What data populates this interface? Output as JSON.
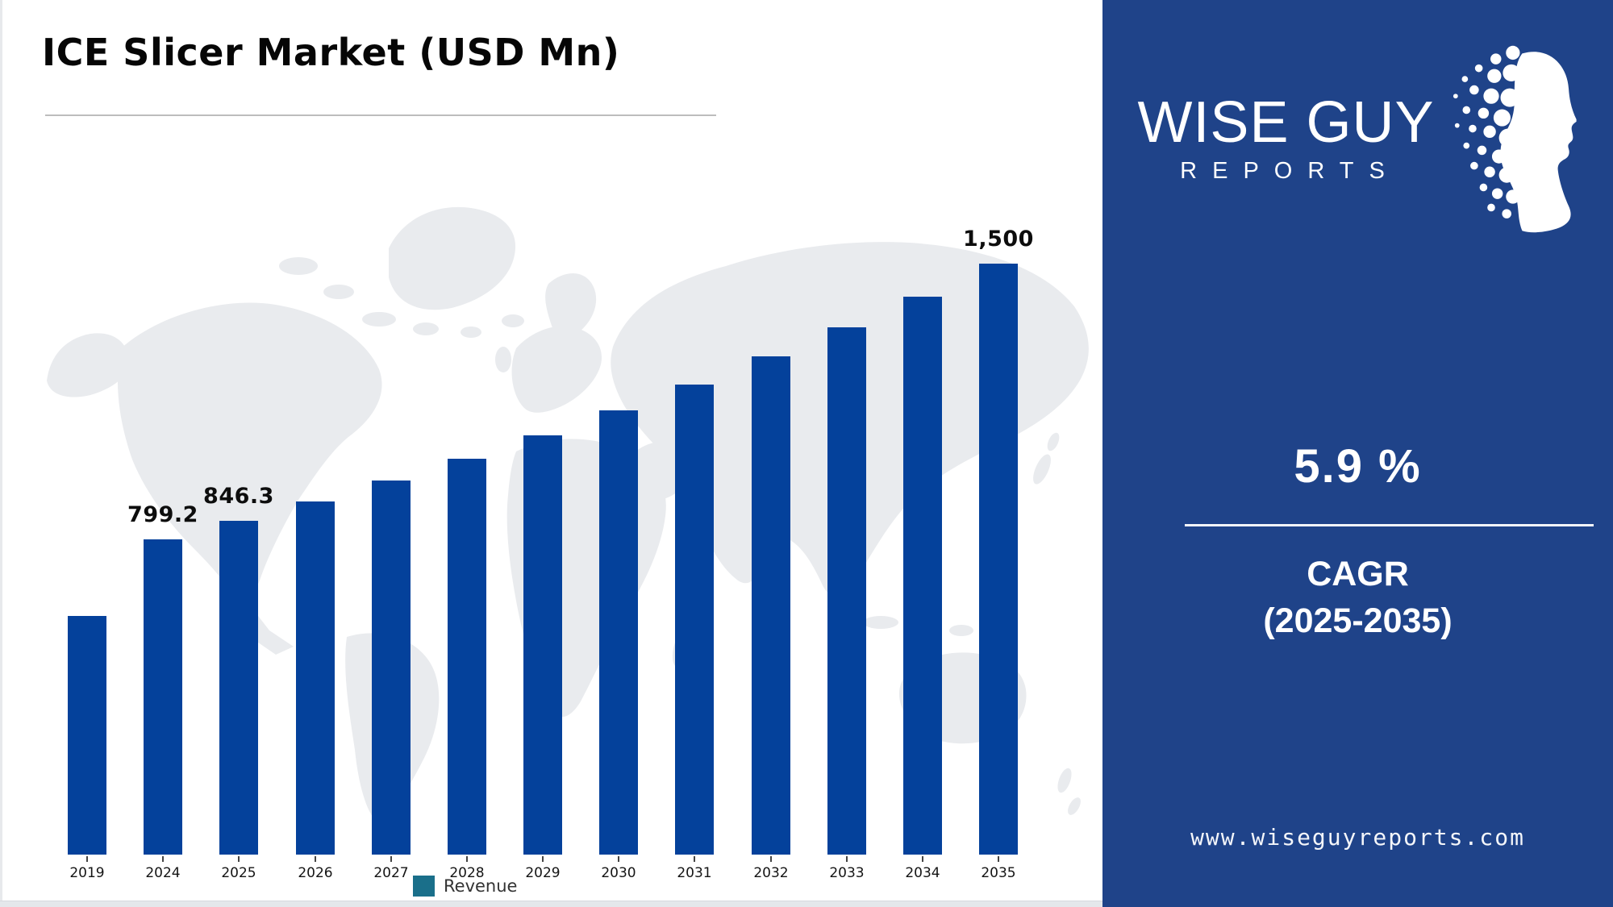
{
  "title": "ICE Slicer Market (USD Mn)",
  "legend": {
    "label": "Revenue"
  },
  "sidebar": {
    "logo_line1": "WISE GUY",
    "logo_line2": "REPORTS",
    "cagr_value": "5.9 %",
    "cagr_line1": "CAGR",
    "cagr_line2": "(2025-2035)",
    "website": "www.wiseguyreports.com"
  },
  "colors": {
    "bar": "#04419b",
    "sidebar_bg": "#1f4389",
    "legend_swatch": "#1a6f8a",
    "map": "#e9ebee"
  },
  "chart_data": {
    "type": "bar",
    "title": "ICE Slicer Market (USD Mn)",
    "series_name": "Revenue",
    "categories": [
      "2019",
      "2024",
      "2025",
      "2026",
      "2027",
      "2028",
      "2029",
      "2030",
      "2031",
      "2032",
      "2033",
      "2034",
      "2035"
    ],
    "values": [
      605,
      799.2,
      846.3,
      896,
      949,
      1005,
      1064,
      1127,
      1194,
      1264,
      1338,
      1417,
      1500
    ],
    "labeled_points": {
      "2024": "799.2",
      "2025": "846.3",
      "2035": "1,500"
    },
    "ylim": [
      0,
      1500
    ],
    "y_axis_visible": false,
    "grid": false,
    "legend_position": "bottom-center"
  }
}
